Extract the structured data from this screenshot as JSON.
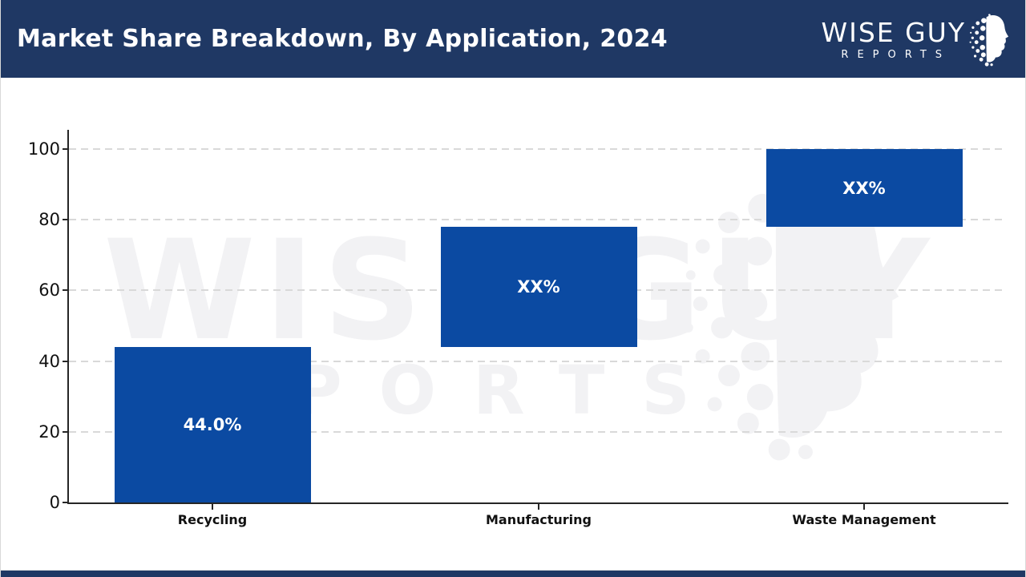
{
  "header": {
    "title": "Market Share Breakdown, By Application, 2024",
    "logo": {
      "line1": "WISE GUY",
      "line2": "REPORTS"
    }
  },
  "watermark": {
    "line1": "WISE GUY",
    "line2": "REPORTS"
  },
  "chart_data": {
    "type": "bar",
    "subtype": "floating-segment-waterfall",
    "title": "Market Share Breakdown, By Application, 2024",
    "categories": [
      "Recycling",
      "Manufacturing",
      "Waste Management"
    ],
    "bars": [
      {
        "category": "Recycling",
        "start": 0,
        "end": 44,
        "label": "44.0%"
      },
      {
        "category": "Manufacturing",
        "start": 44,
        "end": 78,
        "label": "XX%"
      },
      {
        "category": "Waste Management",
        "start": 78,
        "end": 100,
        "label": "XX%"
      }
    ],
    "ylim": [
      0,
      100
    ],
    "yticks": [
      0,
      20,
      40,
      60,
      80,
      100
    ],
    "grid": {
      "horizontal": true,
      "style": "dashed"
    },
    "legend": "none",
    "colors": {
      "bar": "#0b4aa2",
      "bar_label": "#ffffff",
      "axis": "#262626",
      "grid": "#d9d9d9",
      "header_bg": "#1f3864",
      "tick_label": "#111111",
      "watermark": "#f2f2f4"
    }
  }
}
